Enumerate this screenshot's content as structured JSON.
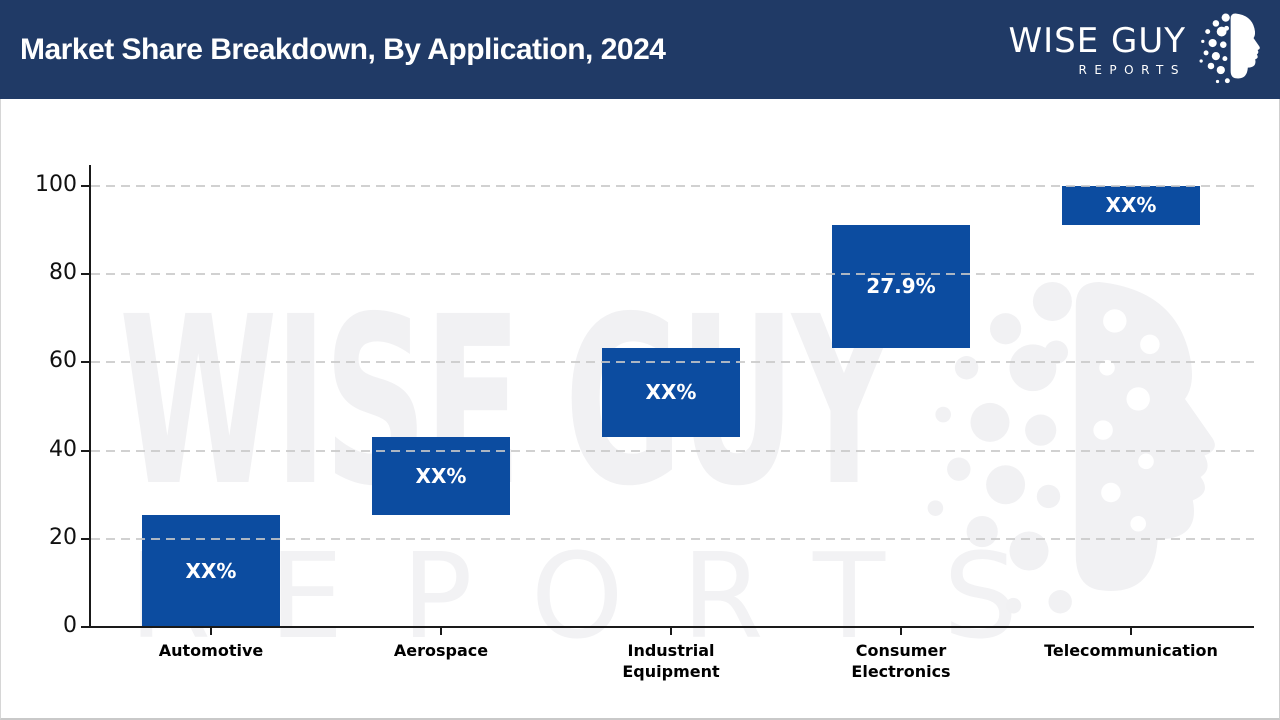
{
  "header": {
    "title": "Market Share Breakdown, By Application, 2024",
    "logo": {
      "line1": "WISE GUY",
      "line2": "REPORTS"
    },
    "background_color": "#203A66"
  },
  "watermark": {
    "line1": "WISE GUY",
    "line2": "REPORTS"
  },
  "chart_data": {
    "type": "bar",
    "subtype": "waterfall-stacked-breakdown",
    "title": "Market Share Breakdown, By Application, 2024",
    "units": "% market share",
    "categories": [
      "Automotive",
      "Aerospace",
      "Industrial Equipment",
      "Consumer Electronics",
      "Telecommunication"
    ],
    "category_lines": [
      [
        "Automotive"
      ],
      [
        "Aerospace"
      ],
      [
        "Industrial",
        "Equipment"
      ],
      [
        "Consumer",
        "Electronics"
      ],
      [
        "Telecommunication"
      ]
    ],
    "segments": [
      {
        "category": "Automotive",
        "start": 0,
        "end": 25.4,
        "estimated_value": 25.4,
        "label": "XX%"
      },
      {
        "category": "Aerospace",
        "start": 25.4,
        "end": 43.1,
        "estimated_value": 17.7,
        "label": "XX%"
      },
      {
        "category": "Industrial Equipment",
        "start": 43.1,
        "end": 63.3,
        "estimated_value": 20.2,
        "label": "XX%"
      },
      {
        "category": "Consumer Electronics",
        "start": 63.3,
        "end": 91.2,
        "estimated_value": 27.9,
        "label": "27.9%"
      },
      {
        "category": "Telecommunication",
        "start": 91.2,
        "end": 100,
        "estimated_value": 8.8,
        "label": "XX%"
      }
    ],
    "y_ticks": [
      0,
      20,
      40,
      60,
      80,
      100
    ],
    "ylim": [
      0,
      100
    ],
    "grid": "horizontal dashed, drawn over bars",
    "legend": "none",
    "bar_color": "#0C4CA0",
    "bar_label_color": "#FFFFFF",
    "axis_color": "#1a1a1a"
  }
}
